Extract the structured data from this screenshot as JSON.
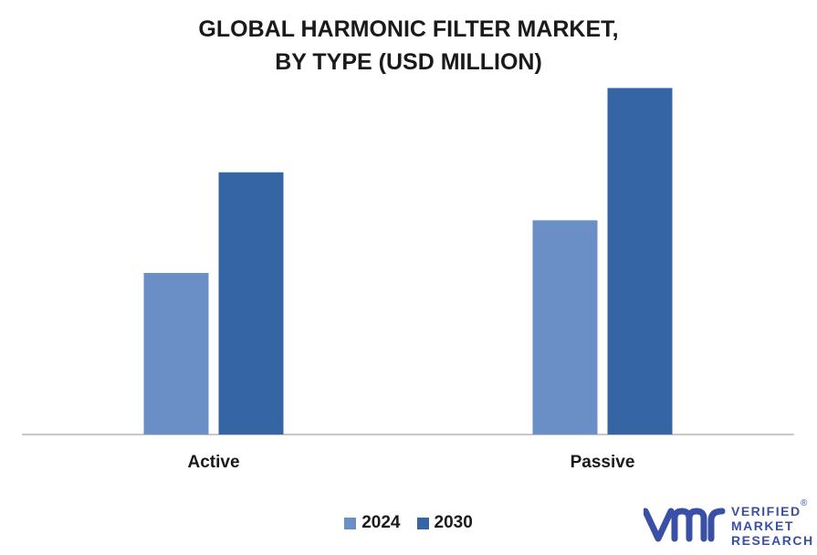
{
  "title_lines": [
    "GLOBAL HARMONIC FILTER MARKET,",
    "BY TYPE (USD MILLION)"
  ],
  "chart_data": {
    "type": "bar",
    "title": "GLOBAL HARMONIC FILTER MARKET, BY TYPE (USD MILLION)",
    "categories": [
      "Active",
      "Passive"
    ],
    "series": [
      {
        "name": "2024",
        "color": "#6a8fc7",
        "values": [
          138,
          183
        ]
      },
      {
        "name": "2030",
        "color": "#3565a5",
        "values": [
          224,
          296
        ]
      }
    ],
    "ylim": [
      0,
      340
    ],
    "grid": false,
    "legend_position": "bottom"
  },
  "legend": [
    {
      "label": "2024",
      "color": "#6a8fc7"
    },
    {
      "label": "2030",
      "color": "#3565a5"
    }
  ],
  "logo": {
    "line1": "VERIFIED",
    "line2": "MARKET",
    "line3": "RESEARCH",
    "registered": "®",
    "color": "#3a4fa6"
  }
}
